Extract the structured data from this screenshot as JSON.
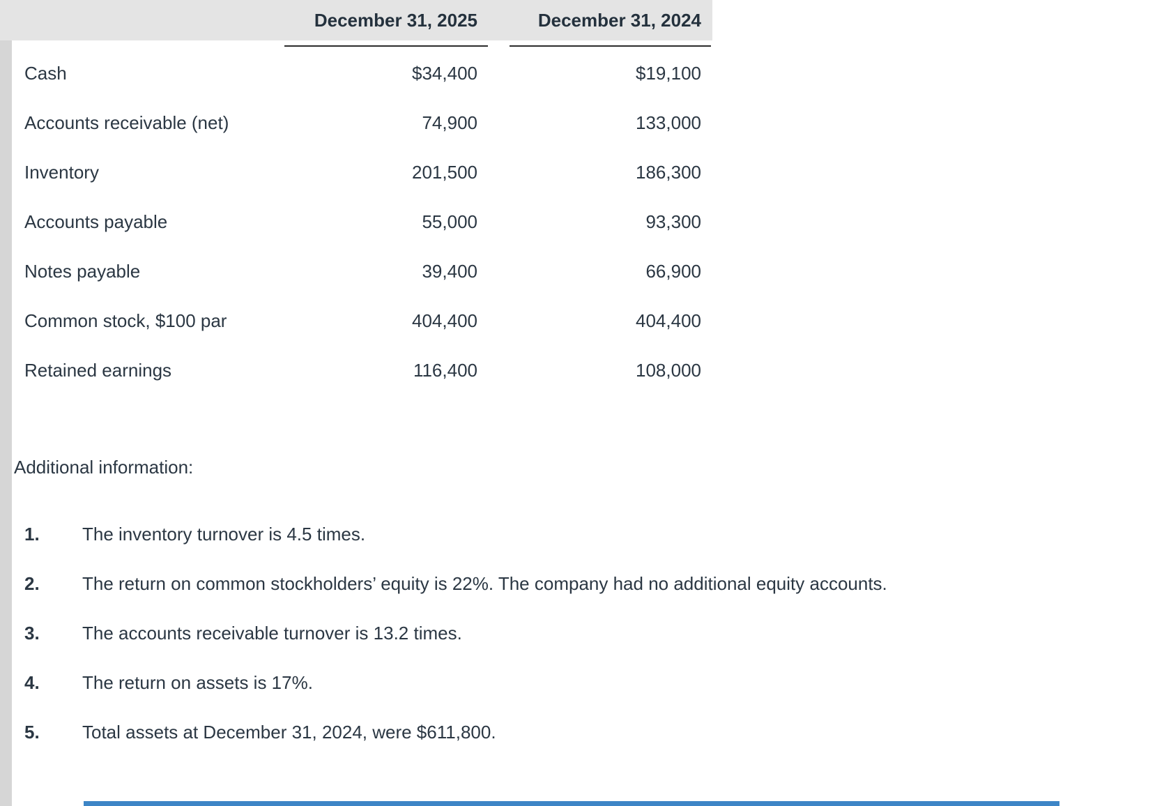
{
  "table": {
    "columns": [
      "December 31, 2025",
      "December 31, 2024"
    ],
    "rows": [
      {
        "label": "Cash",
        "y2025": "$34,400",
        "y2024": "$19,100"
      },
      {
        "label": "Accounts receivable (net)",
        "y2025": "74,900",
        "y2024": "133,000"
      },
      {
        "label": "Inventory",
        "y2025": "201,500",
        "y2024": "186,300"
      },
      {
        "label": "Accounts payable",
        "y2025": "55,000",
        "y2024": "93,300"
      },
      {
        "label": "Notes payable",
        "y2025": "39,400",
        "y2024": "66,900"
      },
      {
        "label": "Common stock, $100 par",
        "y2025": "404,400",
        "y2024": "404,400"
      },
      {
        "label": "Retained earnings",
        "y2025": "116,400",
        "y2024": "108,000"
      }
    ]
  },
  "additional_info": {
    "heading": "Additional information:",
    "items": [
      {
        "num": "1.",
        "text": "The inventory turnover is 4.5 times."
      },
      {
        "num": "2.",
        "text": "The return on common stockholders’ equity is 22%. The company had no additional equity accounts."
      },
      {
        "num": "3.",
        "text": "The accounts receivable turnover is 13.2 times."
      },
      {
        "num": "4.",
        "text": "The return on assets is 17%."
      },
      {
        "num": "5.",
        "text": "Total assets at December 31, 2024, were $611,800."
      }
    ]
  }
}
